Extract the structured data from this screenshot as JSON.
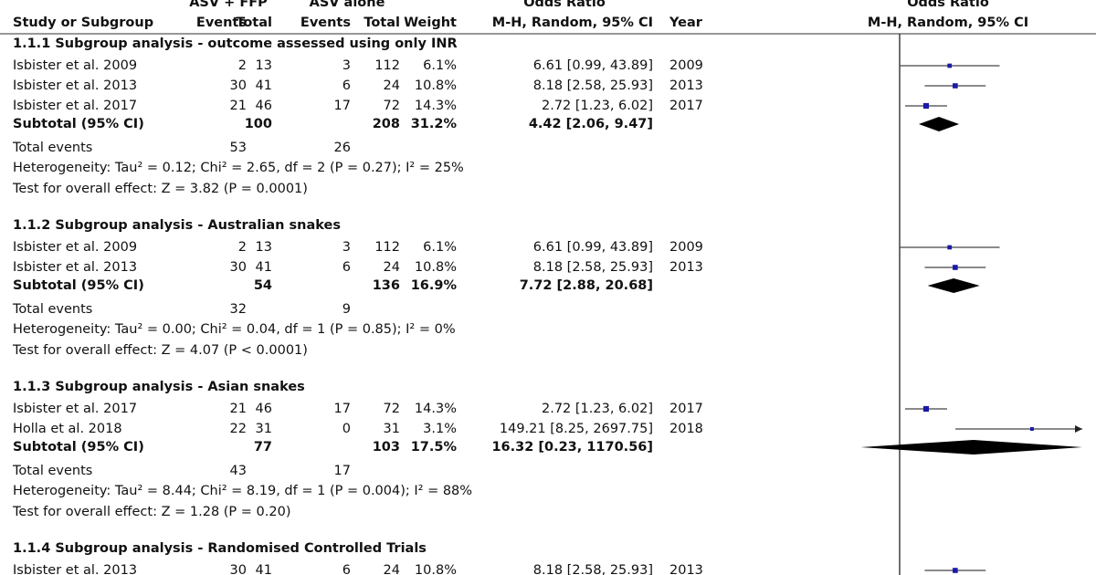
{
  "header": {
    "group1": "ASV + FFP",
    "group2": "ASV alone",
    "or_table": "Odds Ratio",
    "or_plot": "Odds Ratio",
    "study": "Study or Subgroup",
    "events1": "Events",
    "total1": "Total",
    "events2": "Events",
    "total2": "Total",
    "weight": "Weight",
    "method_table": "M-H, Random, 95% CI",
    "year": "Year",
    "method_plot": "M-H, Random, 95% CI"
  },
  "plot": {
    "log_scale": true,
    "xlim": [
      0.001,
      1000
    ],
    "square_color": "#1a1aa8",
    "diamond_color": "#000000"
  },
  "groups": [
    {
      "title": "1.1.1 Subgroup analysis - outcome assessed using only INR",
      "studies": [
        {
          "study": "Isbister et al. 2009",
          "e1": 2,
          "t1": 13,
          "e2": 3,
          "t2": 112,
          "weight": 6.1,
          "weight_label": "6.1%",
          "or": 6.61,
          "lo": 0.99,
          "hi": 43.89,
          "ci_label": "6.61 [0.99, 43.89]",
          "year": 2009
        },
        {
          "study": "Isbister et al. 2013",
          "e1": 30,
          "t1": 41,
          "e2": 6,
          "t2": 24,
          "weight": 10.8,
          "weight_label": "10.8%",
          "or": 8.18,
          "lo": 2.58,
          "hi": 25.93,
          "ci_label": "8.18 [2.58, 25.93]",
          "year": 2013
        },
        {
          "study": "Isbister et al. 2017",
          "e1": 21,
          "t1": 46,
          "e2": 17,
          "t2": 72,
          "weight": 14.3,
          "weight_label": "14.3%",
          "or": 2.72,
          "lo": 1.23,
          "hi": 6.02,
          "ci_label": "2.72 [1.23, 6.02]",
          "year": 2017
        }
      ],
      "subtotal": {
        "label": "Subtotal (95% CI)",
        "t1": 100,
        "t2": 208,
        "weight": 31.2,
        "weight_label": "31.2%",
        "or": 4.42,
        "lo": 2.06,
        "hi": 9.47,
        "ci_label": "4.42 [2.06, 9.47]"
      },
      "total_events": {
        "label": "Total events",
        "e1": 53,
        "e2": 26
      },
      "heterogeneity": "Heterogeneity: Tau² = 0.12; Chi² = 2.65, df = 2 (P = 0.27); I² = 25%",
      "overall_effect": "Test for overall effect: Z = 3.82 (P = 0.0001)"
    },
    {
      "title": "1.1.2 Subgroup analysis - Australian snakes",
      "studies": [
        {
          "study": "Isbister et al. 2009",
          "e1": 2,
          "t1": 13,
          "e2": 3,
          "t2": 112,
          "weight": 6.1,
          "weight_label": "6.1%",
          "or": 6.61,
          "lo": 0.99,
          "hi": 43.89,
          "ci_label": "6.61 [0.99, 43.89]",
          "year": 2009
        },
        {
          "study": "Isbister et al. 2013",
          "e1": 30,
          "t1": 41,
          "e2": 6,
          "t2": 24,
          "weight": 10.8,
          "weight_label": "10.8%",
          "or": 8.18,
          "lo": 2.58,
          "hi": 25.93,
          "ci_label": "8.18 [2.58, 25.93]",
          "year": 2013
        }
      ],
      "subtotal": {
        "label": "Subtotal (95% CI)",
        "t1": 54,
        "t2": 136,
        "weight": 16.9,
        "weight_label": "16.9%",
        "or": 7.72,
        "lo": 2.88,
        "hi": 20.68,
        "ci_label": "7.72 [2.88, 20.68]"
      },
      "total_events": {
        "label": "Total events",
        "e1": 32,
        "e2": 9
      },
      "heterogeneity": "Heterogeneity: Tau² = 0.00; Chi² = 0.04, df = 1 (P = 0.85); I² = 0%",
      "overall_effect": "Test for overall effect: Z = 4.07 (P < 0.0001)"
    },
    {
      "title": "1.1.3 Subgroup analysis - Asian snakes",
      "studies": [
        {
          "study": "Isbister et al. 2017",
          "e1": 21,
          "t1": 46,
          "e2": 17,
          "t2": 72,
          "weight": 14.3,
          "weight_label": "14.3%",
          "or": 2.72,
          "lo": 1.23,
          "hi": 6.02,
          "ci_label": "2.72 [1.23, 6.02]",
          "year": 2017
        },
        {
          "study": "Holla et al. 2018",
          "e1": 22,
          "t1": 31,
          "e2": 0,
          "t2": 31,
          "weight": 3.1,
          "weight_label": "3.1%",
          "or": 149.21,
          "lo": 8.25,
          "hi": 2697.75,
          "ci_label": "149.21 [8.25, 2697.75]",
          "year": 2018
        }
      ],
      "subtotal": {
        "label": "Subtotal (95% CI)",
        "t1": 77,
        "t2": 103,
        "weight": 17.5,
        "weight_label": "17.5%",
        "or": 16.32,
        "lo": 0.23,
        "hi": 1170.56,
        "ci_label": "16.32 [0.23, 1170.56]"
      },
      "total_events": {
        "label": "Total events",
        "e1": 43,
        "e2": 17
      },
      "heterogeneity": "Heterogeneity: Tau² = 8.44; Chi² = 8.19, df = 1 (P = 0.004); I² = 88%",
      "overall_effect": "Test for overall effect: Z = 1.28 (P = 0.20)"
    },
    {
      "title": "1.1.4 Subgroup analysis - Randomised Controlled Trials",
      "studies": [
        {
          "study": "Isbister et al. 2013",
          "e1": 30,
          "t1": 41,
          "e2": 6,
          "t2": 24,
          "weight": 10.8,
          "weight_label": "10.8%",
          "or": 8.18,
          "lo": 2.58,
          "hi": 25.93,
          "ci_label": "8.18 [2.58, 25.93]",
          "year": 2013
        }
      ]
    }
  ]
}
